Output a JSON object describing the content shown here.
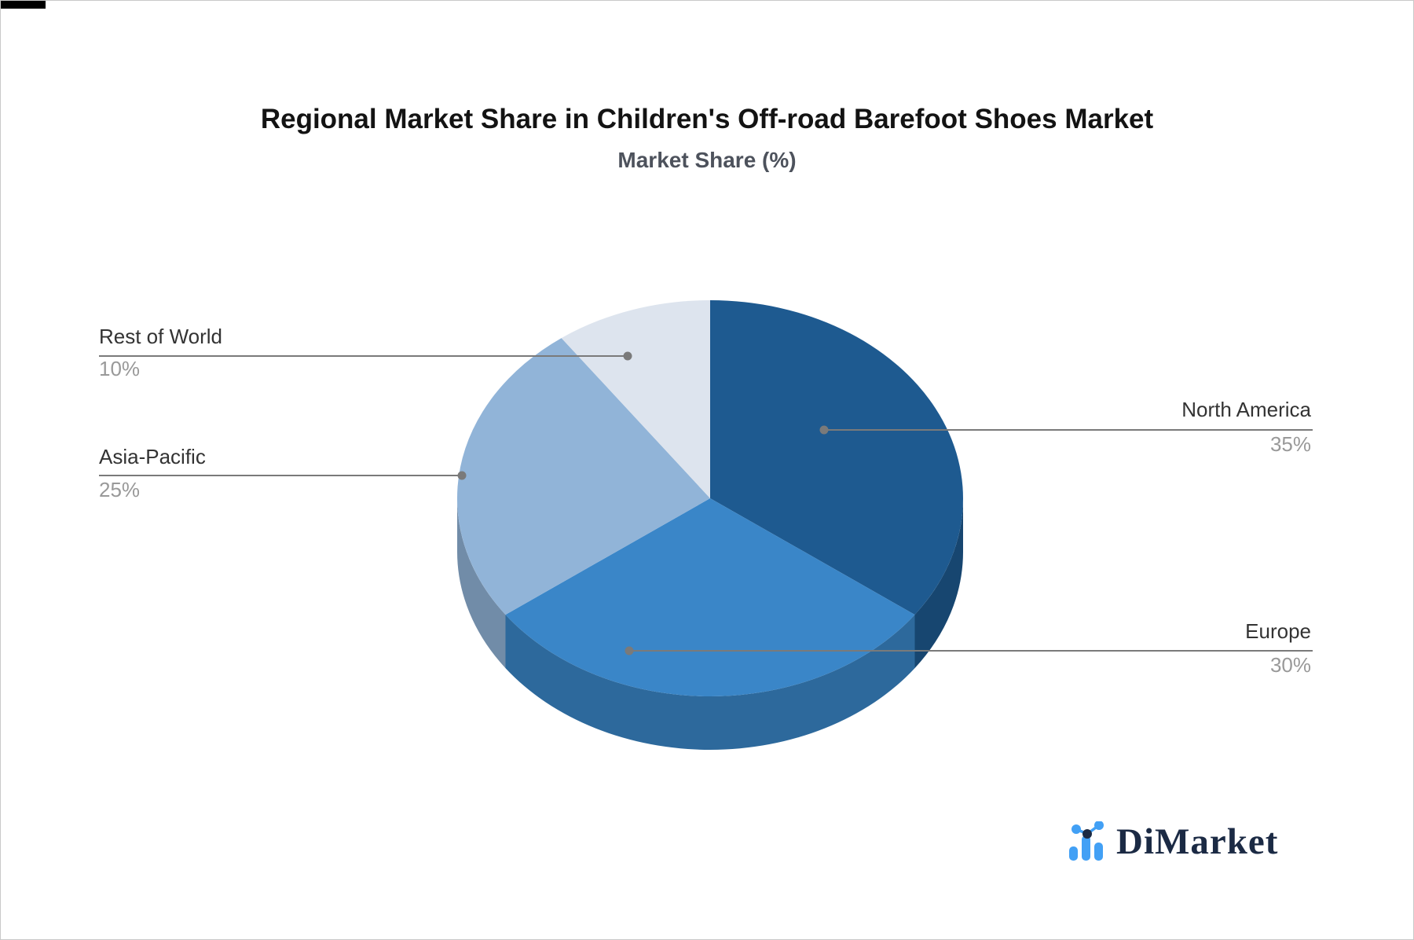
{
  "chart_data": {
    "type": "pie",
    "style": "pie3d",
    "title": "Regional Market Share in Children's Off-road Barefoot Shoes Market",
    "subtitle": "Market Share (%)",
    "unit": "%",
    "start_angle_deg": 90,
    "direction": "clockwise",
    "categories": [
      "North America",
      "Europe",
      "Asia-Pacific",
      "Rest of World"
    ],
    "values": [
      35,
      30,
      25,
      10
    ],
    "slices": [
      {
        "label": "North America",
        "value": 35,
        "percent_label": "35%",
        "color": "#1e5a90",
        "label_side": "right"
      },
      {
        "label": "Europe",
        "value": 30,
        "percent_label": "30%",
        "color": "#3a86c8",
        "label_side": "right"
      },
      {
        "label": "Asia-Pacific",
        "value": 25,
        "percent_label": "25%",
        "color": "#91b4d8",
        "label_side": "left"
      },
      {
        "label": "Rest of World",
        "value": 10,
        "percent_label": "10%",
        "color": "#dde4ee",
        "label_side": "left"
      }
    ],
    "legend_position": "callout-labels",
    "callout_line_color": "#7a7a7a",
    "label_color": "#333333",
    "percent_color": "#999999"
  },
  "logo": {
    "text": "DiMarket",
    "icon": "bar-chart-trend-icon",
    "icon_color": "#42a0f5",
    "icon_accent_color": "#1b2a44",
    "text_color": "#1b2a44"
  }
}
